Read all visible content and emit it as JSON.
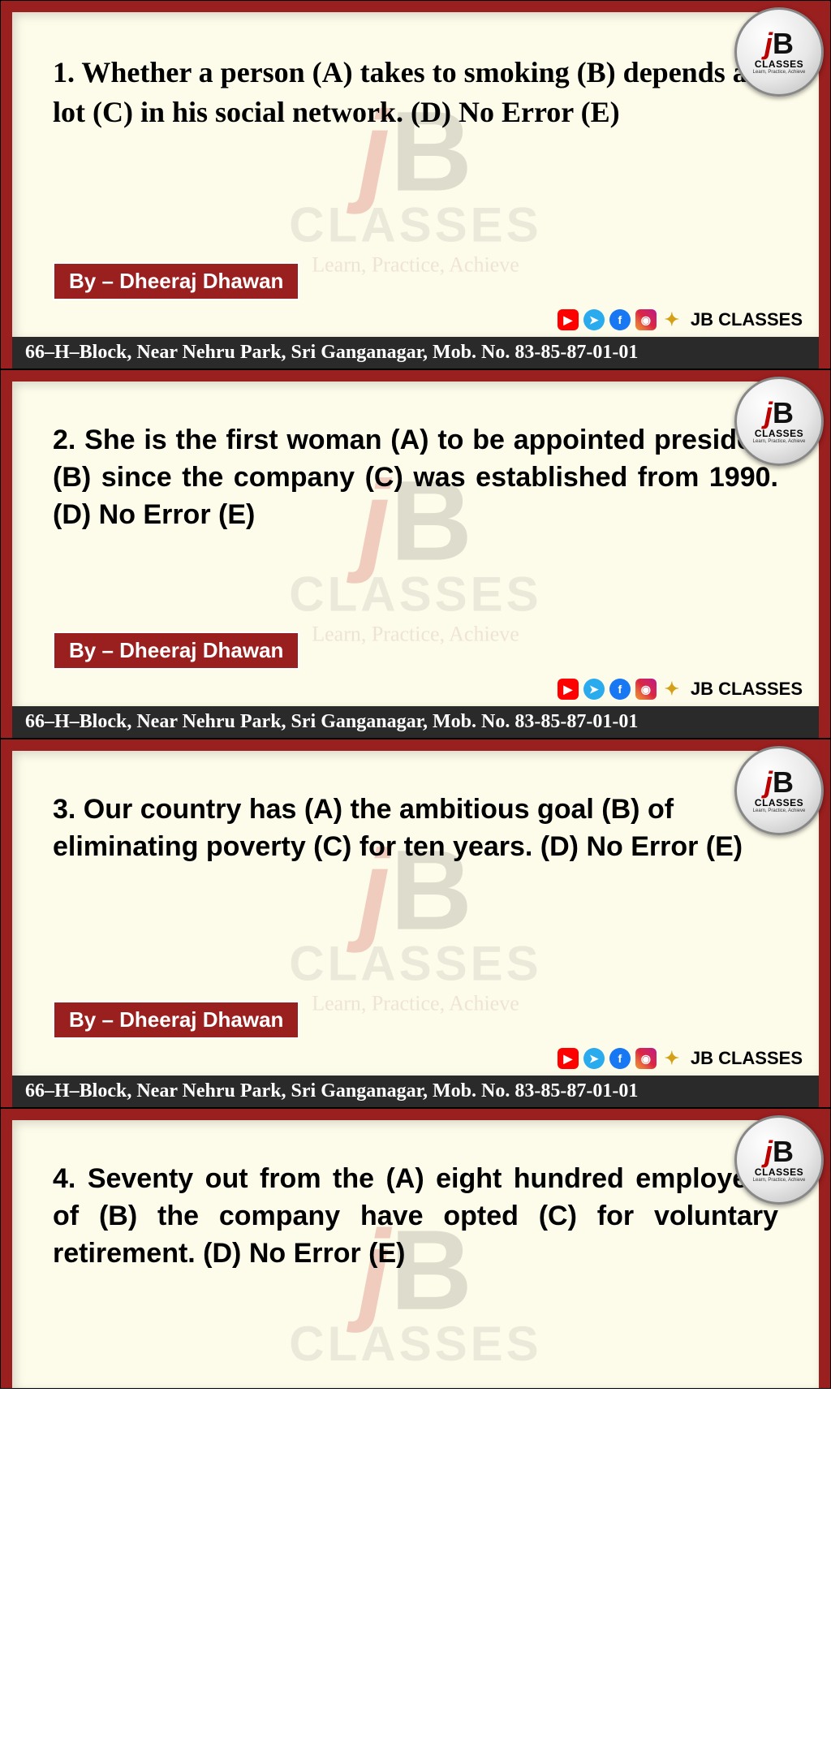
{
  "logo": {
    "main": "jB",
    "sub": "CLASSES",
    "tag": "Learn, Practice, Achieve"
  },
  "watermark": {
    "main": "jB",
    "classes": "CLASSES",
    "tag": "Learn, Practice, Achieve"
  },
  "author_label": "By – Dheeraj Dhawan",
  "social_brand": "JB CLASSES",
  "footer": "66–H–Block, Near Nehru Park, Sri Ganganagar, Mob. No. 83-85-87-01-01",
  "colors": {
    "card_bg": "#9a1f1f",
    "inner_bg": "#fdfbe9",
    "footer_bg": "#2a2a2a",
    "youtube": "#ff0000",
    "telegram": "#2aabee",
    "facebook": "#1877f2",
    "instagram": "#e1306c",
    "web": "#d4a017"
  },
  "questions": [
    {
      "text": "1. Whether a person (A) takes to smoking (B) depends a lot (C) in his social network. (D) No Error (E)",
      "font": "serif",
      "justify": false
    },
    {
      "text": "2. She is the first woman (A) to be appointed president (B) since the company (C) was established from 1990. (D) No Error (E)",
      "font": "sans",
      "justify": true
    },
    {
      "text": "3. Our country has (A) the ambitious goal (B) of eliminating poverty (C) for ten years. (D) No Error (E)",
      "font": "sans",
      "justify": false
    },
    {
      "text": "4. Seventy out from the (A) eight hundred employees of (B) the company have opted (C) for voluntary retirement. (D) No Error (E)",
      "font": "sans",
      "justify": true
    }
  ]
}
